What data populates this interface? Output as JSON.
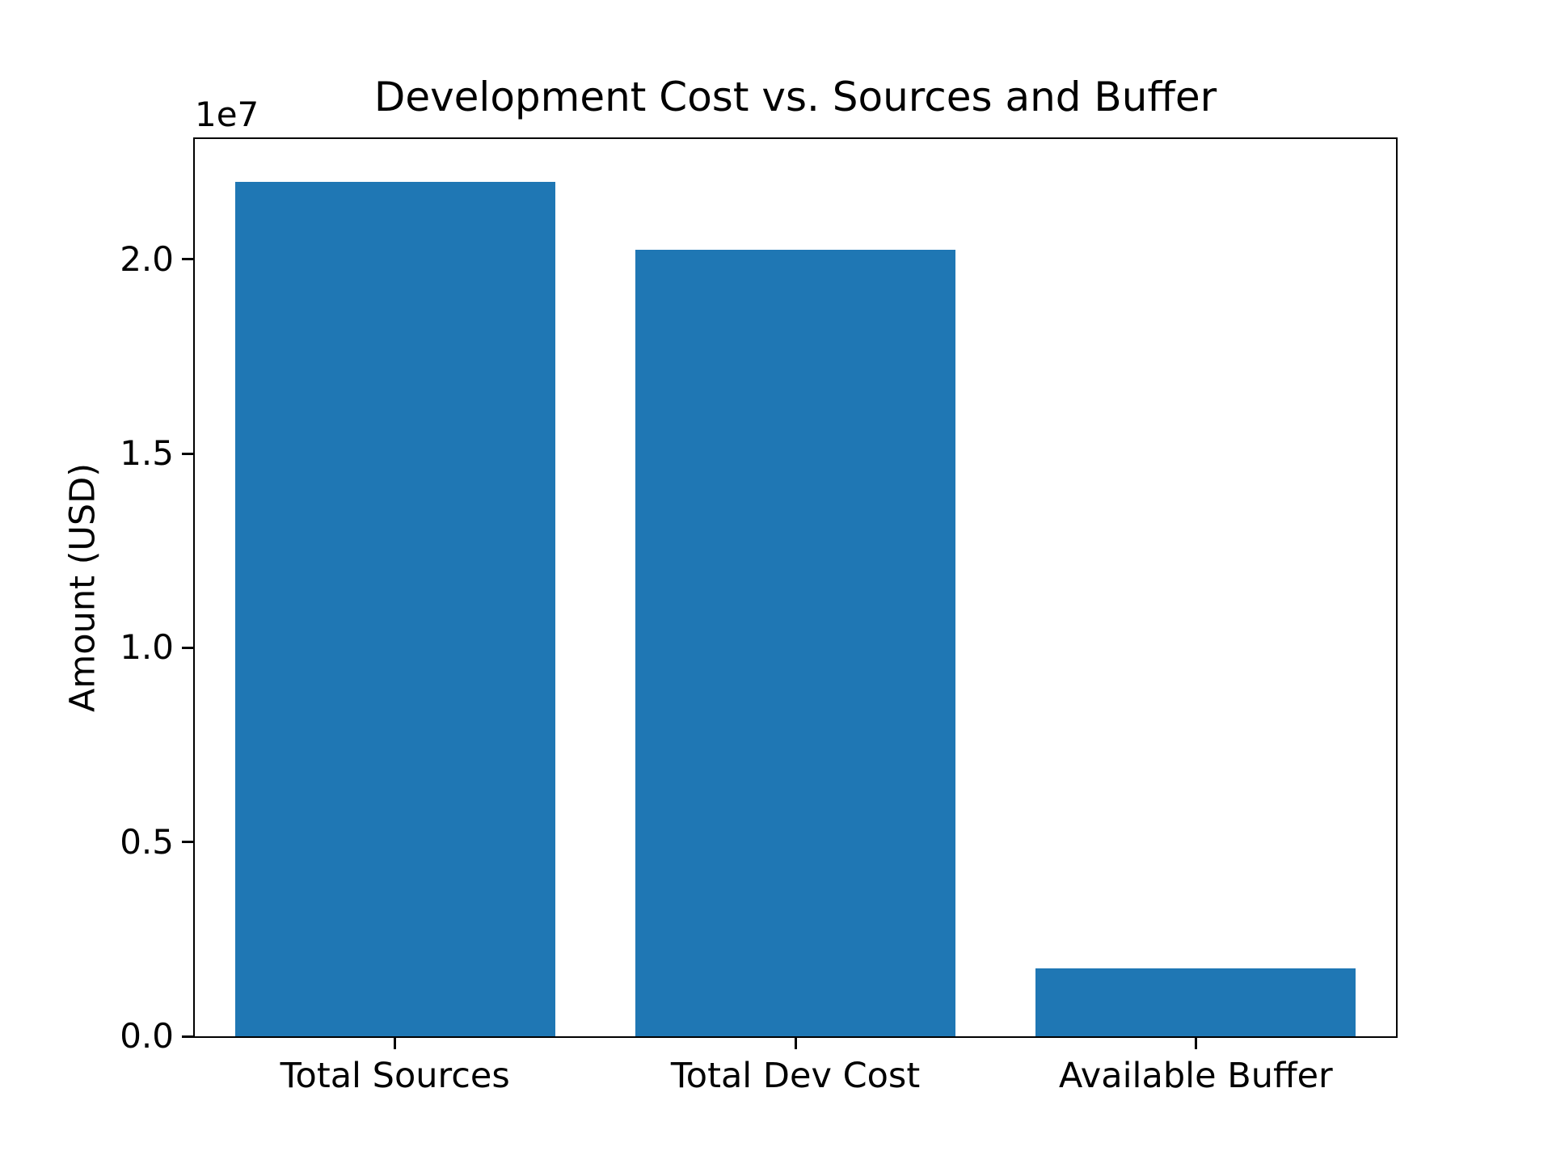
{
  "figure": {
    "title": "Development Cost vs. Sources and Buffer",
    "y_offset_label": "1e7",
    "ylabel": "Amount (USD)"
  },
  "chart_data": {
    "type": "bar",
    "title": "Development Cost vs. Sources and Buffer",
    "categories": [
      "Total Sources",
      "Total Dev Cost",
      "Available Buffer"
    ],
    "values": [
      22000000,
      20250000,
      1750000
    ],
    "xlabel": "",
    "ylabel": "Amount (USD)",
    "ylim": [
      0,
      23100000
    ],
    "yticks": [
      {
        "value": 0,
        "label": "0.0"
      },
      {
        "value": 5000000,
        "label": "0.5"
      },
      {
        "value": 10000000,
        "label": "1.0"
      },
      {
        "value": 15000000,
        "label": "1.5"
      },
      {
        "value": 20000000,
        "label": "2.0"
      }
    ],
    "y_offset_text": "1e7",
    "bar_width_fraction": 0.8,
    "bar_color": "#1f77b4",
    "axis_color": "#000000",
    "background_color": "#ffffff",
    "grid": false,
    "legend": false
  }
}
